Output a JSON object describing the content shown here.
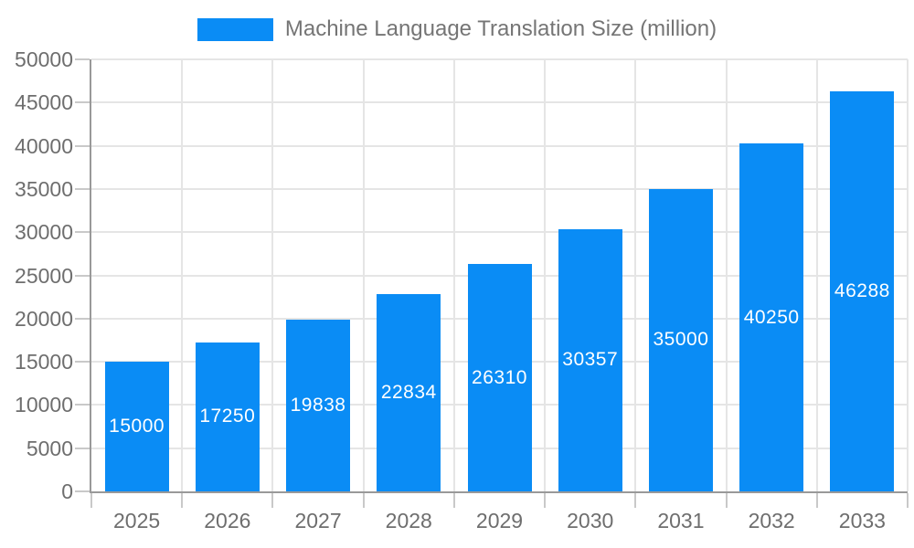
{
  "legend": {
    "label": "Machine Language Translation Size (million)"
  },
  "chart_data": {
    "type": "bar",
    "title": "Machine Language Translation Size (million)",
    "categories": [
      "2025",
      "2026",
      "2027",
      "2028",
      "2029",
      "2030",
      "2031",
      "2032",
      "2033"
    ],
    "series": [
      {
        "name": "Machine Language Translation Size (million)",
        "values": [
          15000,
          17250,
          19838,
          22834,
          26310,
          30357,
          35000,
          40250,
          46288
        ]
      }
    ],
    "bar_value_labels": [
      "15000",
      "17250",
      "19838",
      "22834",
      "26310",
      "30357",
      "35000",
      "40250",
      "46288"
    ],
    "xlabel": "",
    "ylabel": "",
    "ylim": [
      0,
      50000
    ],
    "ytick_step": 5000,
    "ytick_labels": [
      "0",
      "5000",
      "10000",
      "15000",
      "20000",
      "25000",
      "30000",
      "35000",
      "40000",
      "45000",
      "50000"
    ],
    "grid": true,
    "legend_position": "top-center",
    "colors": {
      "bar": "#0A8CF5",
      "gridline": "#E5E5E5",
      "axis_line": "#999999",
      "tick": "#C9C9C9",
      "axis_text": "#6E6E6E",
      "legend_text": "#757575",
      "bar_label_text": "#FFFFFF",
      "background": "#FFFFFF"
    }
  }
}
